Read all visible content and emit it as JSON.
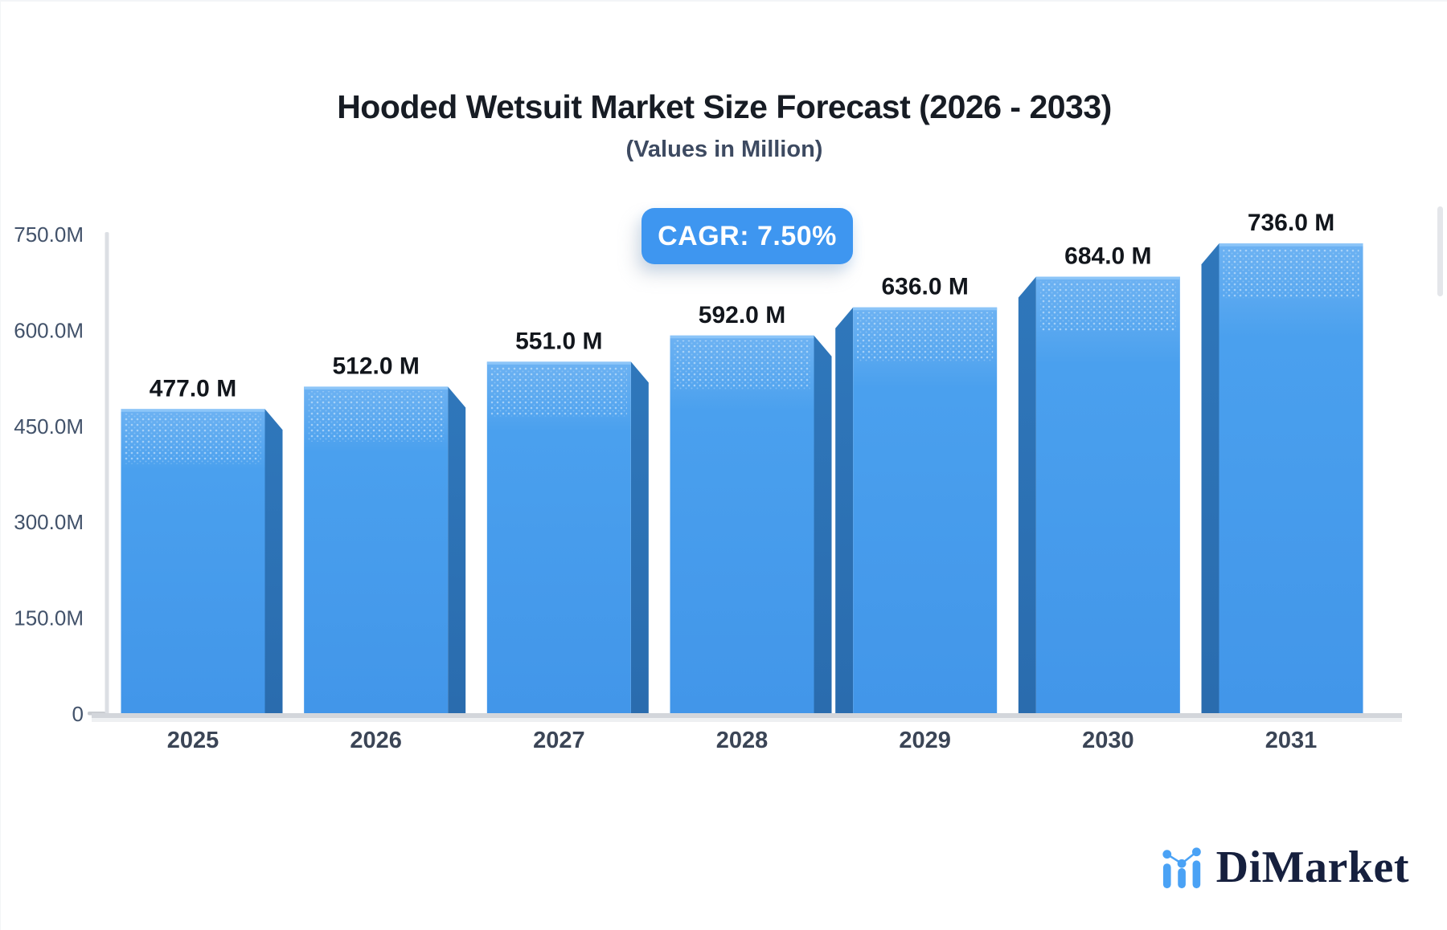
{
  "header": {
    "title": "Hooded Wetsuit Market Size Forecast (2026 - 2033)",
    "subtitle": "(Values in Million)",
    "cagr_badge": "CAGR: 7.50%"
  },
  "branding": {
    "logo_text": "DiMarket",
    "logo_icon": "bar-chart-trend-icon",
    "logo_icon_color": "#4aa2f5",
    "logo_text_color": "#16203e"
  },
  "colors": {
    "bar_face": "#4aa0ee",
    "bar_face_light": "#6db2f2",
    "bar_face_deep": "#4296e9",
    "bar_side": "#2f77bb",
    "bar_top_highlight": "#8cc5f8",
    "badge_bg": "#3e96f0",
    "axis_line": "#dcdfe4",
    "baseline": "#d3d6db",
    "value_label": "#12161c",
    "year_label": "#3b4556",
    "ytick_label": "#42526a"
  },
  "chart_data": {
    "type": "bar",
    "title": "Hooded Wetsuit Market Size Forecast (2026 - 2033)",
    "subtitle": "(Values in Million)",
    "categories": [
      "2025",
      "2026",
      "2027",
      "2028",
      "2029",
      "2030",
      "2031"
    ],
    "values": [
      477.0,
      512.0,
      551.0,
      592.0,
      636.0,
      684.0,
      736.0
    ],
    "value_labels": [
      "477.0 M",
      "512.0 M",
      "551.0 M",
      "592.0 M",
      "636.0 M",
      "684.0 M",
      "736.0 M"
    ],
    "unit": "Million",
    "cagr": "7.50%",
    "xlabel": "",
    "ylabel": "",
    "ylim": [
      0,
      750
    ],
    "yticks": [
      0,
      150,
      300,
      450,
      600,
      750
    ],
    "ytick_labels": [
      "0",
      "150.0M",
      "300.0M",
      "450.0M",
      "600.0M",
      "750.0M"
    ],
    "grid": false,
    "legend": false,
    "style_note": "3D extruded blue bars; bars 2025-2028 beveled right, 2029-2031 beveled left"
  }
}
